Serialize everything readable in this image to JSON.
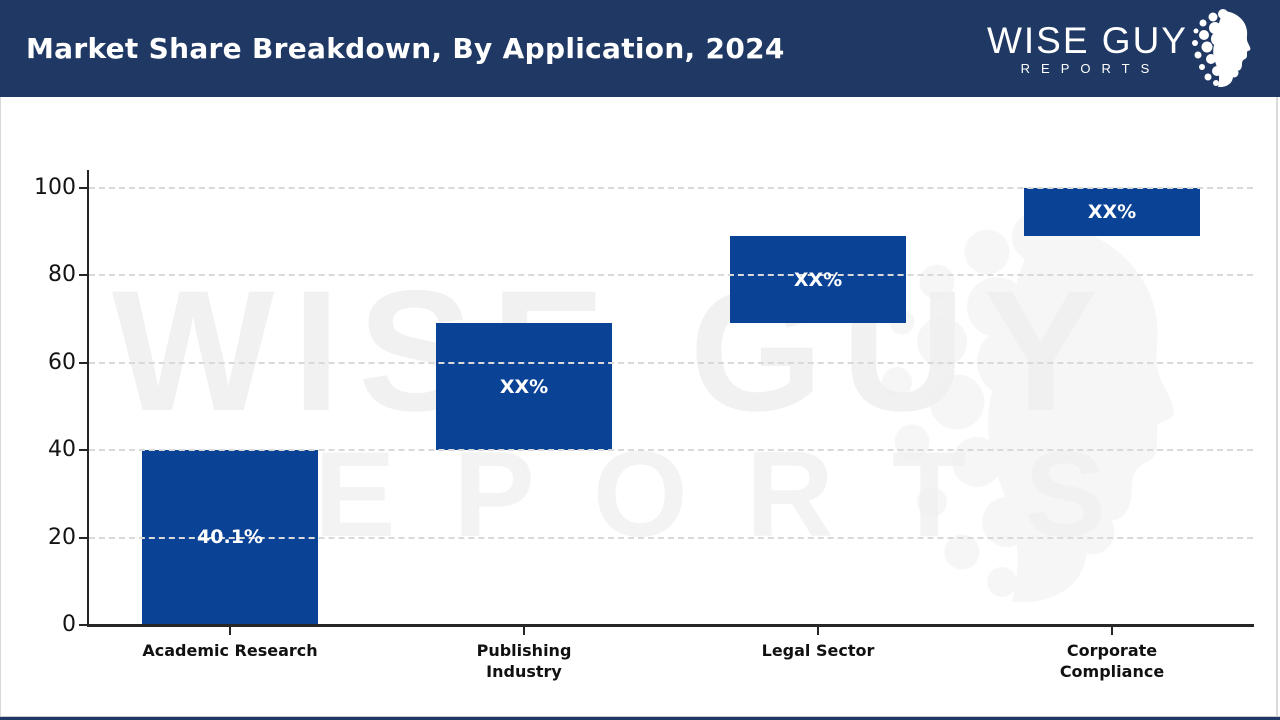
{
  "header": {
    "title": "Market Share Breakdown, By Application, 2024",
    "bg_color": "#1f3864",
    "logo": {
      "line1": "WISE GUY",
      "line2": "REPORTS"
    }
  },
  "watermark": {
    "line1": "WISE GUY",
    "line2": "REPORTS"
  },
  "chart_data": {
    "type": "bar",
    "subtype": "waterfall",
    "title": "Market Share Breakdown, By Application, 2024",
    "categories": [
      "Academic Research",
      "Publishing Industry",
      "Legal Sector",
      "Corporate Compliance"
    ],
    "category_label_lines": [
      [
        "Academic Research"
      ],
      [
        "Publishing",
        "Industry"
      ],
      [
        "Legal Sector"
      ],
      [
        "Corporate",
        "Compliance"
      ]
    ],
    "segments": [
      {
        "category": "Academic Research",
        "start": 0,
        "end": 40.1,
        "label": "40.1%"
      },
      {
        "category": "Publishing Industry",
        "start": 40.1,
        "end": 69,
        "label": "XX%"
      },
      {
        "category": "Legal Sector",
        "start": 69,
        "end": 89,
        "label": "XX%"
      },
      {
        "category": "Corporate Compliance",
        "start": 89,
        "end": 100,
        "label": "XX%"
      }
    ],
    "ylim": [
      0,
      100
    ],
    "yticks": [
      0,
      20,
      40,
      60,
      80,
      100
    ],
    "xlabel": "",
    "ylabel": "",
    "grid": "horizontal-dashed",
    "legend": "none",
    "bar_color": "#0a4296",
    "axis_color": "#262626",
    "gridline_color": "#d9d9d9"
  }
}
